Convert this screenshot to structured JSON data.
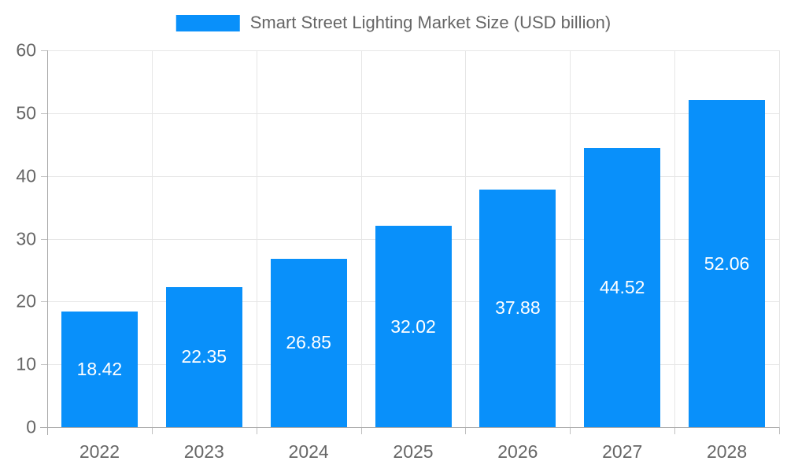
{
  "chart_data": {
    "type": "bar",
    "title": "Smart Street Lighting Market Size (USD billion)",
    "categories": [
      "2022",
      "2023",
      "2024",
      "2025",
      "2026",
      "2027",
      "2028"
    ],
    "values": [
      18.42,
      22.35,
      26.85,
      32.02,
      37.88,
      44.52,
      52.06
    ],
    "xlabel": "",
    "ylabel": "",
    "ylim": [
      0,
      60
    ],
    "yticks": [
      0,
      10,
      20,
      30,
      40,
      50,
      60
    ],
    "grid": true,
    "legend_position": "top",
    "colors": {
      "bar": "#0990fa",
      "grid": "#e6e6e6",
      "axis": "#aaaaaa",
      "tick": "#c0c0c0",
      "axis_text": "#666666",
      "legend_text": "#666666",
      "value_text": "#ffffff",
      "background": "#ffffff"
    }
  }
}
